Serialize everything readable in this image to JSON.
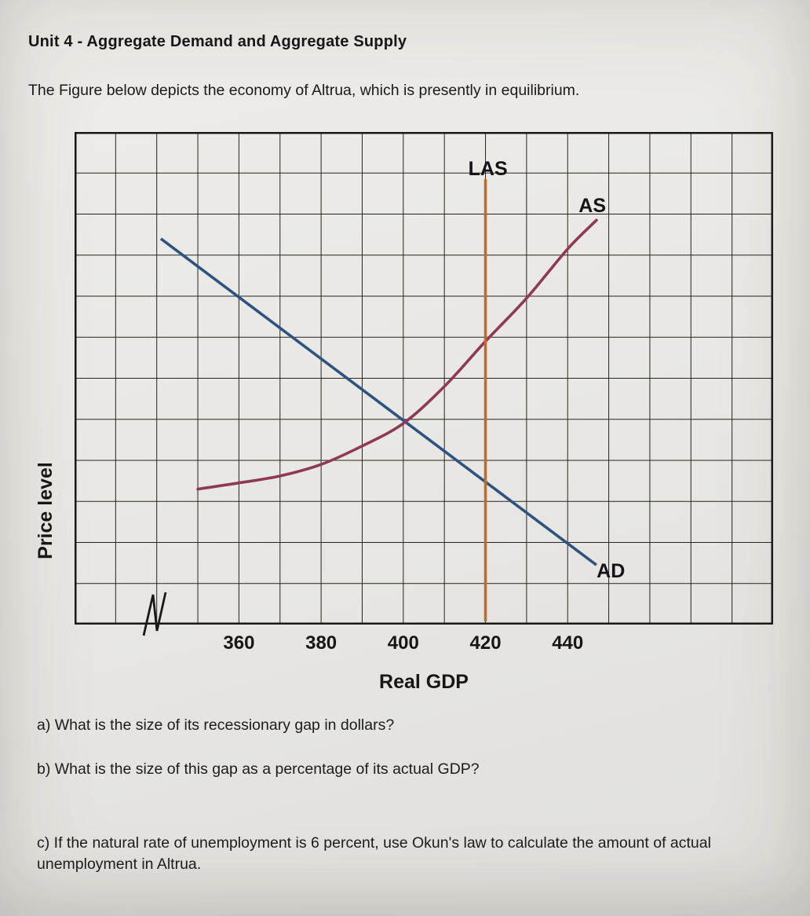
{
  "header": {
    "title": "Unit 4 - Aggregate Demand and Aggregate Supply",
    "intro": "The Figure below depicts the economy of Altrua, which is presently in equilibrium."
  },
  "chart_data": {
    "type": "line",
    "title": "",
    "xlabel": "Real GDP",
    "ylabel": "Price level",
    "x_ticks": [
      360,
      380,
      400,
      420,
      440
    ],
    "x_range": [
      320,
      490
    ],
    "x_grid_step": 10,
    "y_range": [
      0,
      12
    ],
    "y_grid_step": 1,
    "grid": true,
    "equilibrium": {
      "actual_gdp": 400,
      "potential_gdp": 420,
      "recessionary_gap": 20
    },
    "colors": {
      "ad": "#2d5380",
      "as": "#8e3a52",
      "las": "#c96a1d",
      "grid": "#26241f"
    },
    "series": [
      {
        "name": "AD",
        "kind": "line",
        "color": "#2d5380",
        "points": [
          [
            341,
            9.4
          ],
          [
            447,
            1.45
          ]
        ],
        "label_pos": [
          450.5,
          1.15
        ]
      },
      {
        "name": "AS",
        "kind": "curve",
        "color": "#8e3a52",
        "points": [
          [
            350,
            3.3
          ],
          [
            360,
            3.45
          ],
          [
            370,
            3.62
          ],
          [
            380,
            3.9
          ],
          [
            390,
            4.35
          ],
          [
            400,
            4.9
          ],
          [
            410,
            5.8
          ],
          [
            420,
            6.9
          ],
          [
            430,
            7.95
          ],
          [
            440,
            9.15
          ],
          [
            447,
            9.85
          ]
        ],
        "label_pos": [
          446,
          10.05
        ]
      },
      {
        "name": "LAS",
        "kind": "vline",
        "color": "#c96a1d",
        "x": 420,
        "y_span": [
          0.08,
          10.85
        ],
        "label_pos": [
          420.6,
          10.95
        ]
      }
    ]
  },
  "questions": {
    "a": "a) What is the size of its recessionary gap in dollars?",
    "b": "b) What is the size of this gap as a percentage of its actual GDP?",
    "c": "c) If the natural rate of unemployment is 6 percent, use Okun's law to calculate the amount of actual unemployment in Altrua."
  }
}
